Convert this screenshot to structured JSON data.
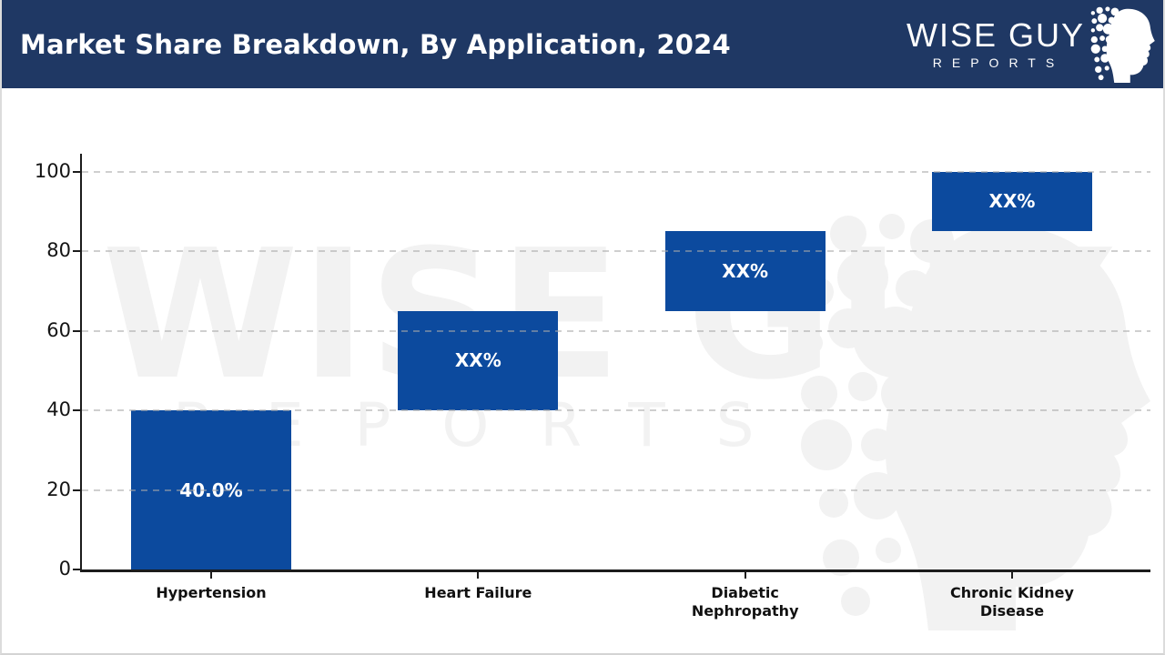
{
  "header": {
    "title": "Market Share Breakdown, By Application, 2024",
    "logo": {
      "name": "WISE GUY",
      "subtitle": "REPORTS"
    }
  },
  "watermark": {
    "line1": "WISE GUY",
    "line2": "REPORTS"
  },
  "colors": {
    "header_bg": "#1f3864",
    "bar": "#0c4a9e",
    "axis": "#1c1c1c",
    "gridline": "#d9d9d9",
    "watermark": "#f2f2f2",
    "bar_label": "#ffffff"
  },
  "chart_data": {
    "type": "bar",
    "variant": "waterfall",
    "title": "Market Share Breakdown, By Application, 2024",
    "categories": [
      "Hypertension",
      "Heart Failure",
      "Diabetic Nephropathy",
      "Chronic Kidney Disease"
    ],
    "category_lines": [
      [
        "Hypertension"
      ],
      [
        "Heart Failure"
      ],
      [
        "Diabetic",
        "Nephropathy"
      ],
      [
        "Chronic Kidney",
        "Disease"
      ]
    ],
    "segments": [
      {
        "category": "Hypertension",
        "start": 0,
        "end": 40,
        "value_label": "40.0%"
      },
      {
        "category": "Heart Failure",
        "start": 40,
        "end": 65,
        "value_label": "XX%"
      },
      {
        "category": "Diabetic Nephropathy",
        "start": 65,
        "end": 85,
        "value_label": "XX%"
      },
      {
        "category": "Chronic Kidney Disease",
        "start": 85,
        "end": 100,
        "value_label": "XX%"
      }
    ],
    "ylim": [
      0,
      100
    ],
    "yticks": [
      0,
      20,
      40,
      60,
      80,
      100
    ],
    "xlabel": "",
    "ylabel": "",
    "legend": "none",
    "grid": {
      "horizontal": true,
      "style": "dashed",
      "drawn_over_bars": true
    },
    "bar_color": "#0c4a9e"
  }
}
